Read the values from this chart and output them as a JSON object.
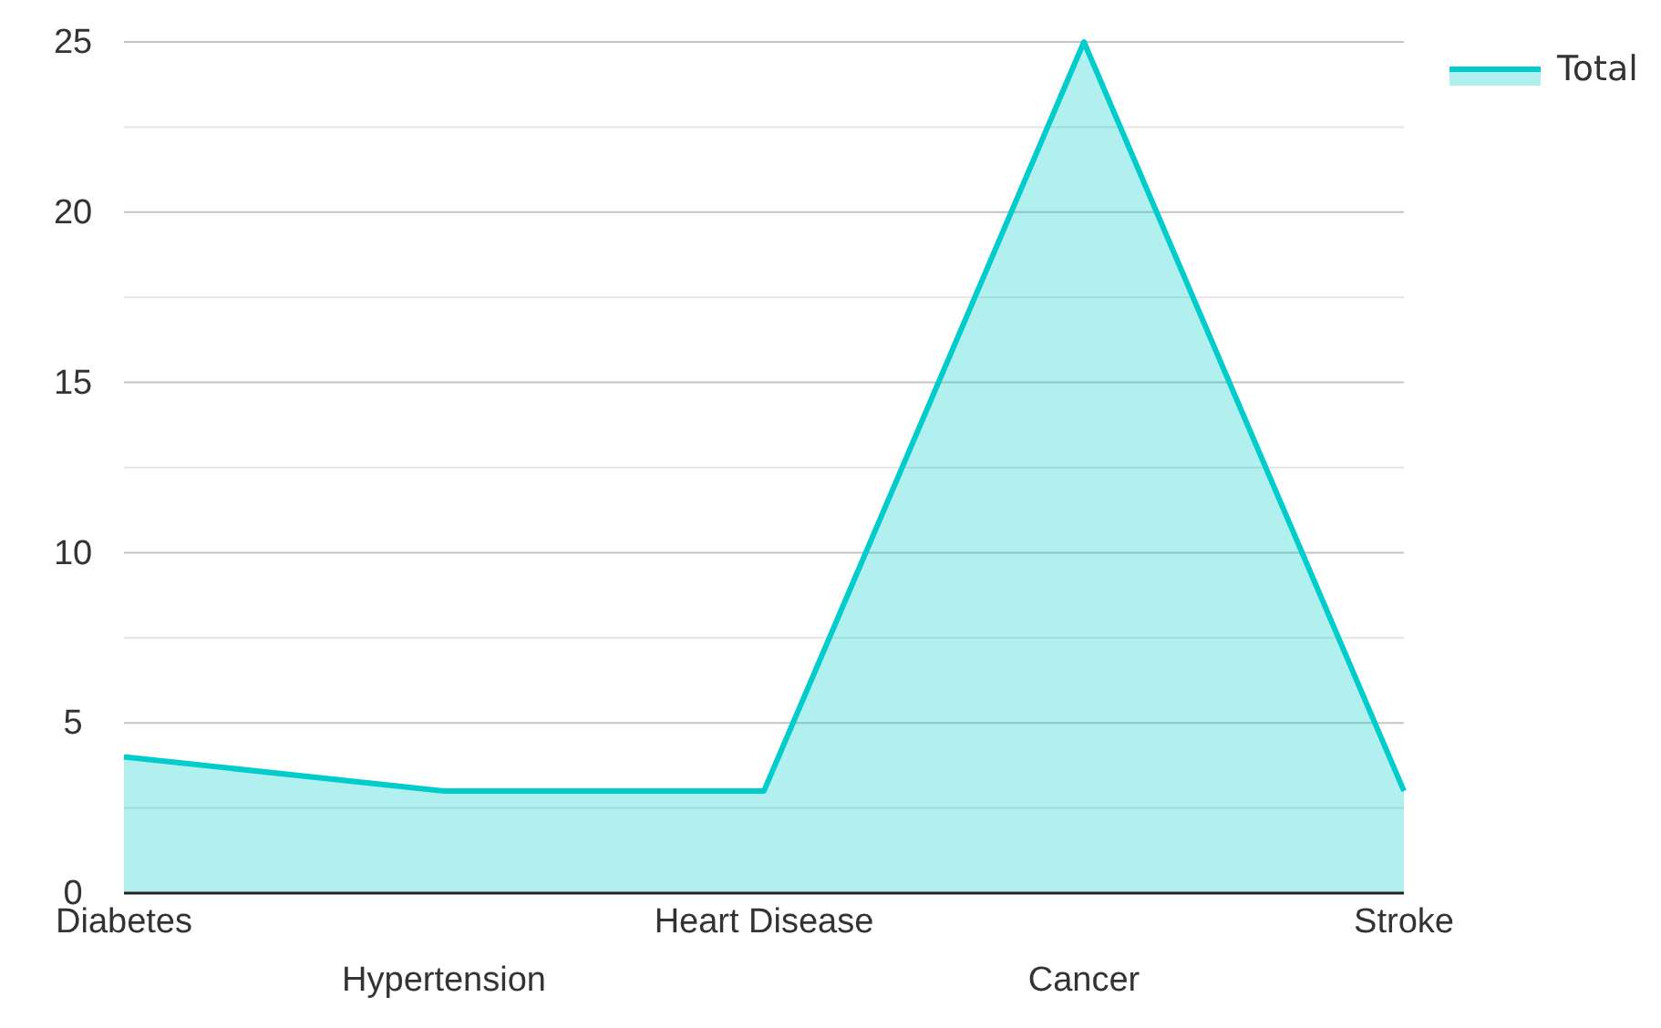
{
  "chart_data": {
    "type": "area",
    "categories": [
      "Diabetes",
      "Hypertension",
      "Heart Disease",
      "Cancer",
      "Stroke"
    ],
    "series": [
      {
        "name": "Total",
        "color": "#00cccc",
        "values": [
          4,
          3,
          3,
          25,
          3
        ]
      }
    ],
    "ylim": [
      0,
      25
    ],
    "yticks": [
      0,
      {
        "value": 2.5,
        "label": null
      },
      5,
      {
        "value": 7.5,
        "label": null
      },
      10,
      {
        "value": 12.5,
        "label": null
      },
      15,
      {
        "value": 17.5,
        "label": null
      },
      20,
      {
        "value": 22.5,
        "label": null
      },
      25
    ],
    "grid": "y",
    "legend": "top right"
  }
}
